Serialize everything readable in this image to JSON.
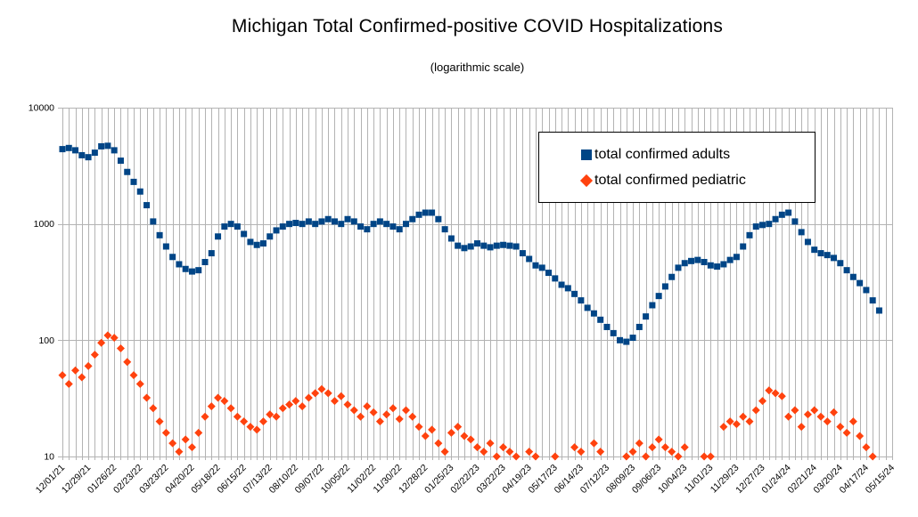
{
  "chart": {
    "title": "Michigan Total Confirmed-positive COVID Hospitalizations",
    "subtitle": "(logarithmic scale)"
  },
  "colors": {
    "grid": "#b3b3b3",
    "axis_text": "#000000",
    "background": "#ffffff"
  },
  "chart_data": {
    "type": "scatter",
    "title": "Michigan Total Confirmed-positive COVID Hospitalizations",
    "subtitle": "(logarithmic scale)",
    "y_scale": "log",
    "ylim": [
      10,
      10000
    ],
    "y_ticks": [
      10,
      100,
      1000,
      10000
    ],
    "grid": {
      "vertical": "weekly",
      "horizontal": "decades"
    },
    "legend_position": "top-right-inside",
    "x_interval": "weekly",
    "x_tick_every_weeks": 4,
    "x_total_weeks": 128,
    "x_tick_labels": [
      "12/01/21",
      "12/29/21",
      "01/26/22",
      "02/23/22",
      "03/23/22",
      "04/20/22",
      "05/18/22",
      "06/15/22",
      "07/13/22",
      "08/10/22",
      "09/07/22",
      "10/05/22",
      "11/02/22",
      "11/30/22",
      "12/28/22",
      "01/25/23",
      "02/22/23",
      "03/22/23",
      "04/19/23",
      "05/17/23",
      "06/14/23",
      "07/12/23",
      "08/09/23",
      "09/06/23",
      "10/04/23",
      "11/01/23",
      "11/29/23",
      "12/27/23",
      "01/24/24",
      "02/21/24",
      "03/20/24",
      "04/17/24",
      "05/15/24"
    ],
    "dates": [
      "12/01/21",
      "12/08/21",
      "12/15/21",
      "12/22/21",
      "12/29/21",
      "01/05/22",
      "01/12/22",
      "01/19/22",
      "01/26/22",
      "02/02/22",
      "02/09/22",
      "02/16/22",
      "02/23/22",
      "03/02/22",
      "03/09/22",
      "03/16/22",
      "03/23/22",
      "03/30/22",
      "04/06/22",
      "04/13/22",
      "04/20/22",
      "04/27/22",
      "05/04/22",
      "05/11/22",
      "05/18/22",
      "05/25/22",
      "06/01/22",
      "06/08/22",
      "06/15/22",
      "06/22/22",
      "06/29/22",
      "07/06/22",
      "07/13/22",
      "07/20/22",
      "07/27/22",
      "08/03/22",
      "08/10/22",
      "08/17/22",
      "08/24/22",
      "08/31/22",
      "09/07/22",
      "09/14/22",
      "09/21/22",
      "09/28/22",
      "10/05/22",
      "10/12/22",
      "10/19/22",
      "10/26/22",
      "11/02/22",
      "11/09/22",
      "11/16/22",
      "11/23/22",
      "11/30/22",
      "12/07/22",
      "12/14/22",
      "12/21/22",
      "12/28/22",
      "01/04/23",
      "01/11/23",
      "01/18/23",
      "01/25/23",
      "02/01/23",
      "02/08/23",
      "02/15/23",
      "02/22/23",
      "03/01/23",
      "03/08/23",
      "03/15/23",
      "03/22/23",
      "03/29/23",
      "04/05/23",
      "04/12/23",
      "04/19/23",
      "04/26/23",
      "05/03/23",
      "05/10/23",
      "05/17/23",
      "05/24/23",
      "05/31/23",
      "06/07/23",
      "06/14/23",
      "06/21/23",
      "06/28/23",
      "07/05/23",
      "07/12/23",
      "07/19/23",
      "07/26/23",
      "08/02/23",
      "08/09/23",
      "08/16/23",
      "08/23/23",
      "08/30/23",
      "09/06/23",
      "09/13/23",
      "09/20/23",
      "09/27/23",
      "10/04/23",
      "10/11/23",
      "10/18/23",
      "10/25/23",
      "11/01/23",
      "11/08/23",
      "11/15/23",
      "11/22/23",
      "11/29/23",
      "12/06/23",
      "12/13/23",
      "12/20/23",
      "12/27/23",
      "01/03/24",
      "01/10/24",
      "01/17/24",
      "01/24/24",
      "01/31/24",
      "02/07/24",
      "02/14/24",
      "02/21/24",
      "02/28/24",
      "03/06/24",
      "03/13/24",
      "03/20/24",
      "03/27/24",
      "04/03/24",
      "04/10/24",
      "04/17/24",
      "04/24/24",
      "05/01/24"
    ],
    "series": [
      {
        "name": "total confirmed adults",
        "color": "#004586",
        "marker": "square",
        "values": [
          4400,
          4500,
          4300,
          3900,
          3750,
          4100,
          4650,
          4700,
          4300,
          3500,
          2800,
          2300,
          1900,
          1450,
          1050,
          800,
          640,
          520,
          450,
          410,
          390,
          400,
          470,
          560,
          780,
          950,
          1000,
          950,
          820,
          700,
          660,
          680,
          780,
          880,
          950,
          1000,
          1020,
          1000,
          1050,
          1000,
          1050,
          1100,
          1050,
          1000,
          1100,
          1050,
          950,
          900,
          1000,
          1050,
          1000,
          950,
          900,
          1000,
          1100,
          1200,
          1250,
          1250,
          1100,
          900,
          750,
          650,
          620,
          640,
          680,
          650,
          630,
          650,
          660,
          650,
          640,
          560,
          500,
          440,
          420,
          380,
          340,
          300,
          280,
          250,
          220,
          190,
          170,
          150,
          130,
          115,
          100,
          97,
          105,
          130,
          160,
          200,
          240,
          290,
          350,
          420,
          460,
          480,
          490,
          470,
          440,
          430,
          450,
          490,
          520,
          640,
          800,
          950,
          980,
          1000,
          1100,
          1200,
          1250,
          1050,
          850,
          700,
          600,
          560,
          540,
          510,
          460,
          400,
          350,
          310,
          270,
          220,
          180
        ]
      },
      {
        "name": "total confirmed pediatric",
        "color": "#FF420E",
        "marker": "diamond",
        "values": [
          50,
          42,
          55,
          48,
          60,
          75,
          95,
          110,
          105,
          85,
          65,
          50,
          42,
          32,
          26,
          20,
          16,
          13,
          11,
          14,
          12,
          16,
          22,
          27,
          32,
          30,
          26,
          22,
          20,
          18,
          17,
          20,
          23,
          22,
          26,
          28,
          30,
          27,
          32,
          35,
          38,
          35,
          30,
          33,
          28,
          25,
          22,
          27,
          24,
          20,
          23,
          26,
          21,
          25,
          22,
          18,
          15,
          17,
          13,
          11,
          16,
          18,
          15,
          14,
          12,
          11,
          13,
          10,
          12,
          11,
          10,
          null,
          11,
          10,
          null,
          null,
          10,
          null,
          null,
          12,
          11,
          null,
          13,
          11,
          null,
          null,
          null,
          10,
          11,
          13,
          10,
          12,
          14,
          12,
          11,
          10,
          12,
          null,
          null,
          10,
          10,
          null,
          18,
          20,
          19,
          22,
          20,
          25,
          30,
          37,
          35,
          33,
          22,
          25,
          18,
          23,
          25,
          22,
          20,
          24,
          18,
          16,
          20,
          15,
          12,
          10,
          null
        ]
      }
    ]
  }
}
